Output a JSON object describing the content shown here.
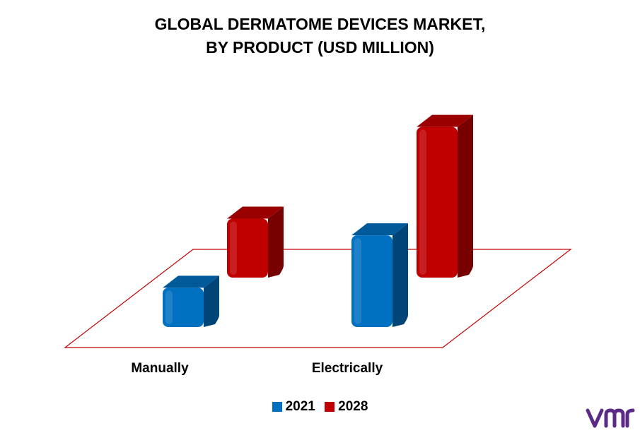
{
  "chart_data": {
    "type": "bar",
    "title_line1": "GLOBAL DERMATOME DEVICES MARKET,",
    "title_line2": "BY PRODUCT (USD MILLION)",
    "categories": [
      "Manually",
      "Electrically"
    ],
    "series": [
      {
        "name": "2021",
        "values": [
          30,
          70
        ],
        "color": "#0070c0"
      },
      {
        "name": "2028",
        "values": [
          45,
          115
        ],
        "color": "#c00000"
      }
    ],
    "ylim": [
      0,
      120
    ],
    "grid": false,
    "legend_position": "bottom"
  },
  "floor_color": "#c00000",
  "logo_color": "#5b2a86",
  "logo_icon": "vmr-logo-icon"
}
